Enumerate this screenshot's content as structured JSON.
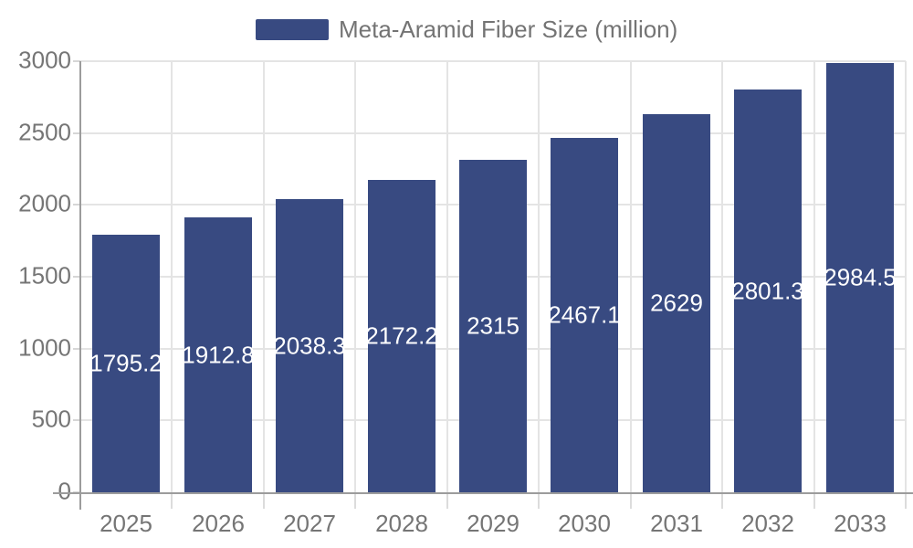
{
  "chart_data": {
    "type": "bar",
    "title": "",
    "xlabel": "",
    "ylabel": "",
    "categories": [
      "2025",
      "2026",
      "2027",
      "2028",
      "2029",
      "2030",
      "2031",
      "2032",
      "2033"
    ],
    "series": [
      {
        "name": "Meta-Aramid Fiber Size (million)",
        "values": [
          1795.2,
          1912.8,
          2038.3,
          2172.2,
          2315,
          2467.1,
          2629,
          2801.3,
          2984.5
        ]
      }
    ],
    "ylim": [
      0,
      3000
    ],
    "yticks": [
      0,
      500,
      1000,
      1500,
      2000,
      2500,
      3000
    ],
    "grid": true,
    "legend_position": "top-center",
    "value_labels_shown": true,
    "colors": {
      "bar": "#384A81",
      "bar_label": "#ffffff",
      "grid_line": "#e4e4e4",
      "axis_line": "#9c9c9c",
      "tick_label": "#757575",
      "legend_text": "#747474",
      "background": "#ffffff"
    }
  }
}
